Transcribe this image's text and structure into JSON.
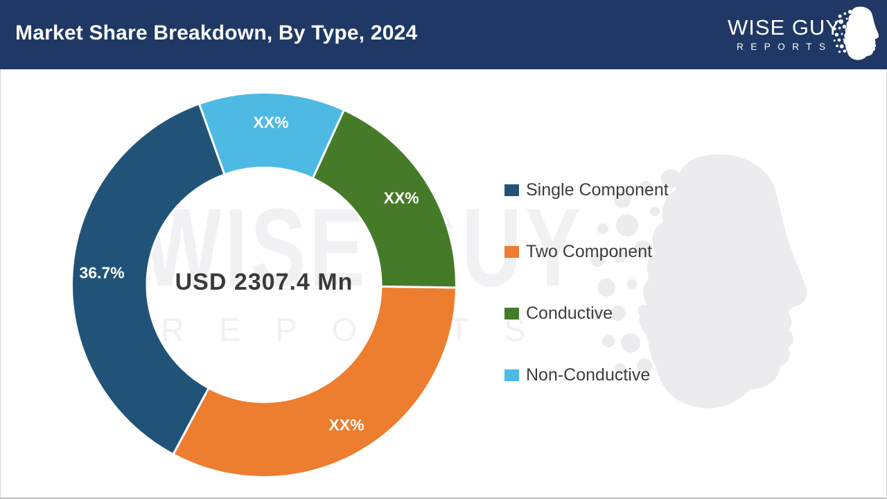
{
  "header": {
    "title": "Market Share Breakdown, By Type, 2024",
    "bg_color": "#1f3865",
    "logo": {
      "name_line": "WISE GUY",
      "sub_line": "REPORTS"
    }
  },
  "watermark": {
    "name_line": "WISE GUY",
    "sub_line": "REPORTS"
  },
  "chart_data": {
    "type": "pie",
    "subtype": "donut",
    "title": "Market Share Breakdown, By Type, 2024",
    "center_value": "USD 2307.4 Mn",
    "legend_position": "right",
    "segments": [
      {
        "label": "Single Component",
        "value_pct": 36.7,
        "display_label": "36.7%",
        "color": "#215378"
      },
      {
        "label": "Two Component",
        "value_pct": 32.6,
        "display_label": "XX%",
        "color": "#ed7d2f"
      },
      {
        "label": "Conductive",
        "value_pct": 18.4,
        "display_label": "XX%",
        "color": "#457b28"
      },
      {
        "label": "Non-Conductive",
        "value_pct": 12.3,
        "display_label": "XX%",
        "color": "#4ebae3"
      }
    ]
  }
}
